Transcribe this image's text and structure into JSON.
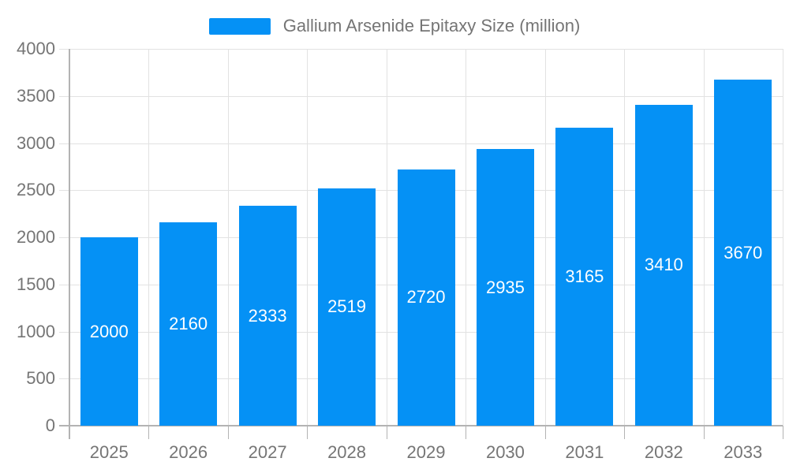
{
  "legend": {
    "label": "Gallium Arsenide Epitaxy Size (million)"
  },
  "colors": {
    "bar": "#0591f5",
    "axis": "#b3b3b3",
    "grid": "#e2e2e2",
    "tick_text": "#757575",
    "bar_label_text": "#ffffff",
    "background": "#ffffff"
  },
  "chart_data": {
    "type": "bar",
    "title": "Gallium Arsenide Epitaxy Size (million)",
    "categories": [
      "2025",
      "2026",
      "2027",
      "2028",
      "2029",
      "2030",
      "2031",
      "2032",
      "2033"
    ],
    "series": [
      {
        "name": "Gallium Arsenide Epitaxy Size (million)",
        "values": [
          2000,
          2160,
          2333,
          2519,
          2720,
          2935,
          3165,
          3410,
          3670
        ]
      }
    ],
    "bar_value_labels": [
      "2000",
      "2160",
      "2333",
      "2519",
      "2720",
      "2935",
      "3165",
      "3410",
      "3670"
    ],
    "xlabel": "",
    "ylabel": "",
    "ylim": [
      0,
      4000
    ],
    "y_ticks": [
      0,
      500,
      1000,
      1500,
      2000,
      2500,
      3000,
      3500,
      4000
    ],
    "grid": true,
    "legend_position": "top-center"
  }
}
